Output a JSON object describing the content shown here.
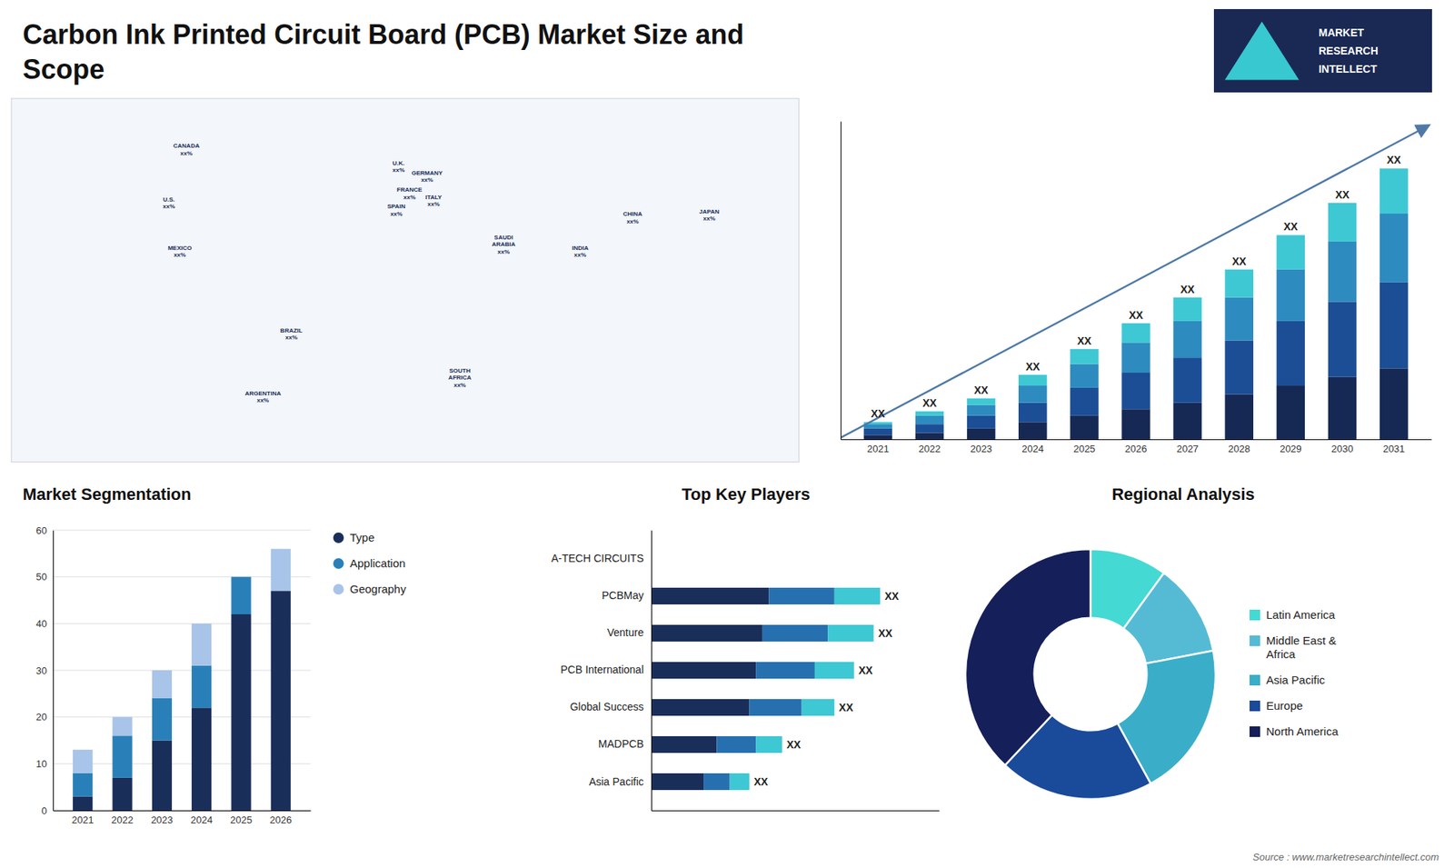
{
  "chart_data": [
    {
      "type": "map",
      "title": "Carbon Ink Printed Circuit Board (PCB) Market Size and\nScope",
      "categories": [
        "CANADA",
        "U.S.",
        "MEXICO",
        "BRAZIL",
        "ARGENTINA",
        "U.K.",
        "FRANCE",
        "SPAIN",
        "GERMANY",
        "ITALY",
        "SAUDI\nARABIA",
        "SOUTH\nAFRICA",
        "CHINA",
        "JAPAN",
        "INDIA"
      ],
      "x": [
        -100,
        -108,
        -103,
        -52,
        -65,
        -3,
        2,
        -4,
        10,
        13,
        45,
        25,
        104,
        139,
        80
      ],
      "y": [
        64,
        42,
        22,
        -12,
        -38,
        57,
        46,
        39,
        53,
        43,
        25,
        -30,
        36,
        37,
        22
      ],
      "value_labels": [
        "xx%",
        "xx%",
        "xx%",
        "xx%",
        "xx%",
        "xx%",
        "xx%",
        "xx%",
        "xx%",
        "xx%",
        "xx%",
        "xx%",
        "xx%",
        "xx%",
        "xx%"
      ],
      "xlim": [
        -180,
        180
      ],
      "ylim": [
        -65,
        85
      ],
      "annotations": [
        "MARKET",
        "RESEARCH",
        "INTELLECT"
      ]
    },
    {
      "type": "bar",
      "stacked": true,
      "categories": [
        "2021",
        "2022",
        "2023",
        "2024",
        "2025",
        "2026",
        "2027",
        "2028",
        "2029",
        "2030",
        "2031"
      ],
      "series": [
        {
          "color": "#162954",
          "values": [
            2,
            3,
            5,
            8,
            11,
            14,
            17,
            21,
            25,
            29,
            33
          ]
        },
        {
          "color": "#1c4e96",
          "values": [
            3,
            4,
            6,
            9,
            13,
            17,
            21,
            25,
            30,
            35,
            40
          ]
        },
        {
          "color": "#2e8bbf",
          "values": [
            2,
            4,
            5,
            8,
            11,
            14,
            17,
            20,
            24,
            28,
            32
          ]
        },
        {
          "color": "#3ec8d4",
          "values": [
            1,
            2,
            3,
            5,
            7,
            9,
            11,
            13,
            16,
            18,
            21
          ]
        }
      ],
      "ylim": [
        0,
        148
      ],
      "tick_labels": "x",
      "annotations": [
        {
          "text": "XX",
          "category": "2021"
        },
        {
          "text": "XX",
          "category": "2022"
        },
        {
          "text": "XX",
          "category": "2023"
        },
        {
          "text": "XX",
          "category": "2024"
        },
        {
          "text": "XX",
          "category": "2025"
        },
        {
          "text": "XX",
          "category": "2026"
        },
        {
          "text": "XX",
          "category": "2027"
        },
        {
          "text": "XX",
          "category": "2028"
        },
        {
          "text": "XX",
          "category": "2029"
        },
        {
          "text": "XX",
          "category": "2030"
        },
        {
          "text": "XX",
          "category": "2031"
        }
      ]
    },
    {
      "type": "bar",
      "stacked": true,
      "title": "Market Segmentation",
      "categories": [
        "2021",
        "2022",
        "2023",
        "2024",
        "2025",
        "2026"
      ],
      "series": [
        {
          "name": "Type",
          "color": "#1a2e5a",
          "values": [
            3,
            7,
            15,
            22,
            42,
            47
          ]
        },
        {
          "name": "Application",
          "color": "#2980b9",
          "values": [
            5,
            9,
            9,
            9,
            8,
            0
          ]
        },
        {
          "name": "Geography",
          "color": "#a8c4e8",
          "values": [
            5,
            4,
            6,
            9,
            0,
            9
          ]
        }
      ],
      "ylim": [
        0,
        60
      ],
      "yticks": [
        0,
        10,
        20,
        30,
        40,
        50,
        60
      ],
      "grid": true,
      "legend": "right"
    },
    {
      "type": "bar",
      "stacked": true,
      "orientation": "horizontal",
      "title": "Top Key Players",
      "categories": [
        "A-TECH CIRCUITS",
        "PCBMay",
        "Venture",
        "PCB International",
        "Global Success",
        "MADPCB",
        "Asia Pacific"
      ],
      "series": [
        {
          "color": "#1a2e5a",
          "values": [
            0,
            9.0,
            8.5,
            8.0,
            7.5,
            5.0,
            4.0
          ]
        },
        {
          "color": "#2770b0",
          "values": [
            0,
            5.0,
            5.0,
            4.5,
            4.0,
            3.0,
            2.0
          ]
        },
        {
          "color": "#3ec8d4",
          "values": [
            0,
            3.5,
            3.5,
            3.0,
            2.5,
            2.0,
            1.5
          ]
        }
      ],
      "xlim": [
        0,
        22
      ],
      "tick_labels": "y",
      "annotations": [
        {
          "text": "XX",
          "category": "PCBMay"
        },
        {
          "text": "XX",
          "category": "Venture"
        },
        {
          "text": "XX",
          "category": "PCB International"
        },
        {
          "text": "XX",
          "category": "Global Success"
        },
        {
          "text": "XX",
          "category": "MADPCB"
        },
        {
          "text": "XX",
          "category": "Asia Pacific"
        }
      ]
    },
    {
      "type": "pie",
      "title": "Regional Analysis",
      "categories": [
        "Latin America",
        "Middle East &\nAfrica",
        "Asia Pacific",
        "Europe",
        "North America"
      ],
      "values": [
        10,
        12,
        20,
        20,
        38
      ],
      "colors": [
        "#45d9d4",
        "#55bbd5",
        "#3aaec8",
        "#1a4a9a",
        "#151f5a"
      ],
      "legend": "right",
      "annotations": [
        "Source : www.marketresearchintellect.com"
      ]
    }
  ]
}
